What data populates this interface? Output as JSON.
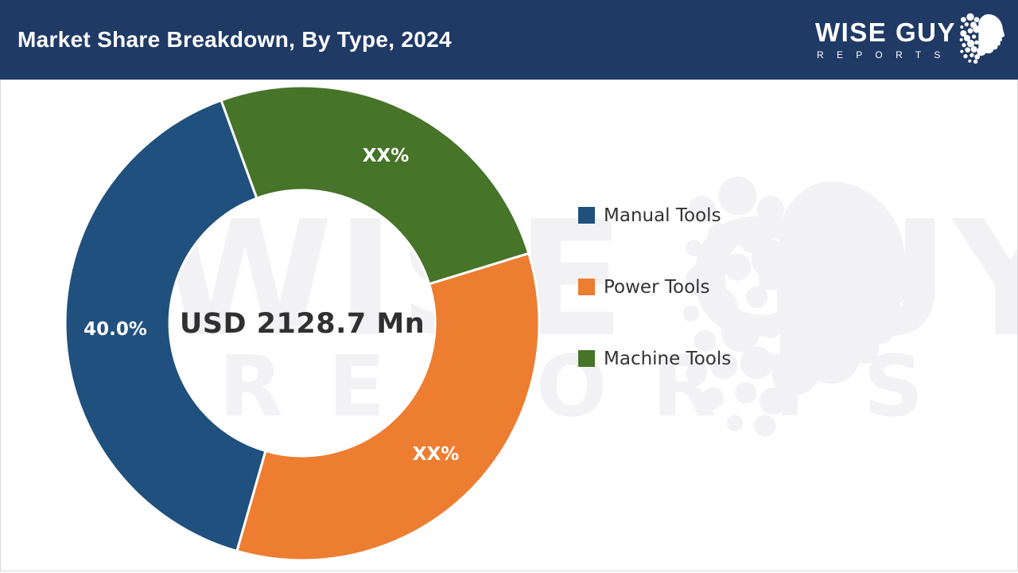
{
  "header": {
    "title": "Market Share Breakdown, By Type, 2024",
    "bg_color": "#203a66",
    "logo": {
      "line1": "WISE GUY",
      "line2": "R E P O R T S"
    }
  },
  "chart_data": {
    "type": "pie",
    "subtype": "donut",
    "title": "Market Share Breakdown, By Type, 2024",
    "center_label": "USD 2128.7 Mn",
    "start_angle_deg": 110,
    "direction": "counterclockwise",
    "inner_radius_ratio": 0.56,
    "legend_position": "right",
    "categories": [
      "Manual Tools",
      "Power Tools",
      "Machine Tools"
    ],
    "values": [
      40.0,
      34.2,
      25.8
    ],
    "displayed_labels": [
      "40.0%",
      "XX%",
      "XX%"
    ],
    "colors": [
      "#20507d",
      "#ed7d31",
      "#467429"
    ]
  },
  "legend": {
    "items": [
      {
        "label": "Manual Tools",
        "color": "#20507d"
      },
      {
        "label": "Power Tools",
        "color": "#ed7d31"
      },
      {
        "label": "Machine Tools",
        "color": "#467429"
      }
    ]
  },
  "watermark": {
    "line1": "WISE GUY",
    "line2": "R E P O R T S"
  },
  "styles": {
    "center_text_color": "#303030",
    "legend_text_color": "#333333",
    "watermark_color": "#f2f2f5",
    "border_color": "#d9d9d9"
  }
}
